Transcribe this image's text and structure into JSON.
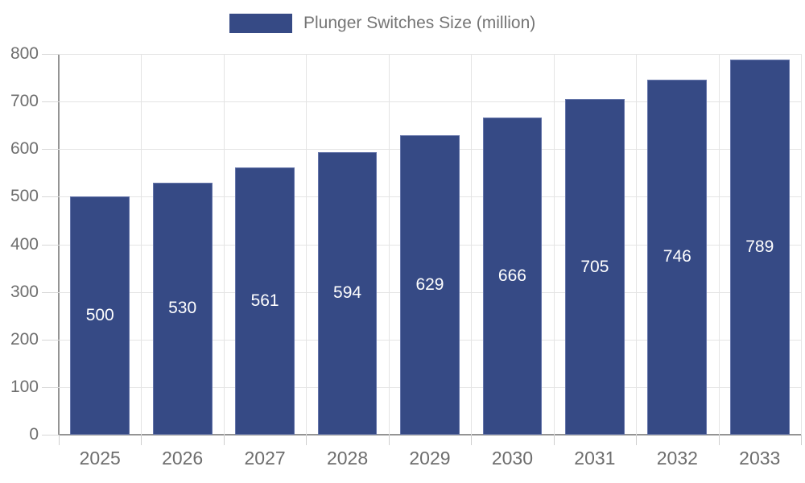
{
  "legend": {
    "label": "Plunger Switches Size (million)",
    "swatch_color": "#364a85"
  },
  "chart_data": {
    "type": "bar",
    "title": "",
    "series_name": "Plunger Switches Size (million)",
    "categories": [
      "2025",
      "2026",
      "2027",
      "2028",
      "2029",
      "2030",
      "2031",
      "2032",
      "2033"
    ],
    "values": [
      500,
      530,
      561,
      594,
      629,
      666,
      705,
      746,
      789
    ],
    "xlabel": "",
    "ylabel": "",
    "ylim": [
      0,
      800
    ],
    "yticks": [
      0,
      100,
      200,
      300,
      400,
      500,
      600,
      700,
      800
    ],
    "grid": true,
    "legend_position": "top",
    "bar_color": "#364a85",
    "value_label_color": "#ffffff",
    "axis_label_color": "#6e6e6e",
    "gridline_color": "#e4e4e4"
  }
}
